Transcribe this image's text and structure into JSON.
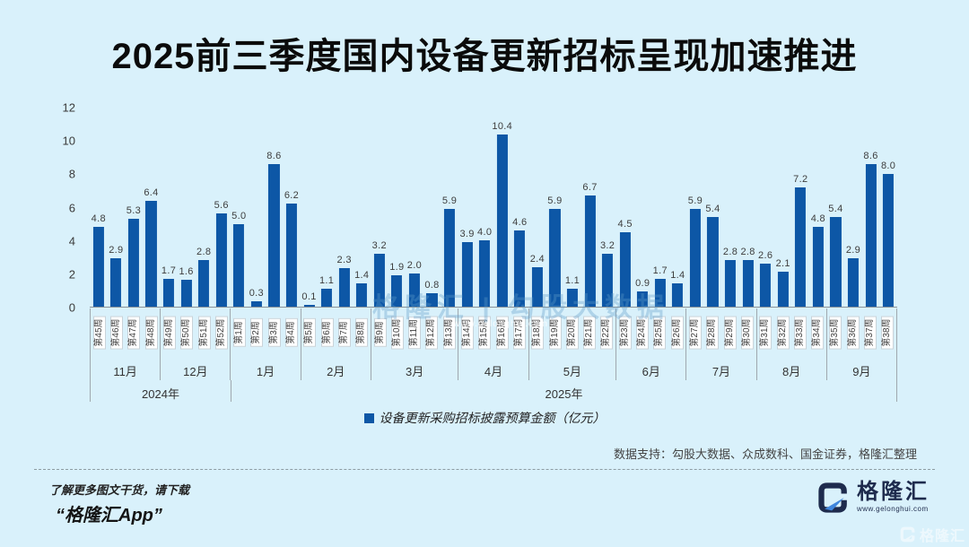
{
  "title": "2025前三季度国内设备更新招标呈现加速推进",
  "chart_data": {
    "type": "bar",
    "title": "2025前三季度国内设备更新招标呈现加速推进",
    "legend": "设备更新采购招标披露预算金额（亿元）",
    "ylabel": "",
    "xlabel": "",
    "ylim": [
      0,
      12
    ],
    "yticks": [
      0,
      2,
      4,
      6,
      8,
      10,
      12
    ],
    "grid": false,
    "legend_position": "bottom",
    "bar_color": "#0d57a6",
    "categories": [
      "第45周",
      "第46周",
      "第47周",
      "第48周",
      "第49周",
      "第50周",
      "第51周",
      "第52周",
      "第1周",
      "第2周",
      "第3周",
      "第4周",
      "第5周",
      "第6周",
      "第7周",
      "第8周",
      "第9周",
      "第10周",
      "第11周",
      "第12周",
      "第13周",
      "第14周",
      "第15周",
      "第16周",
      "第17周",
      "第18周",
      "第19周",
      "第20周",
      "第21周",
      "第22周",
      "第23周",
      "第24周",
      "第25周",
      "第26周",
      "第27周",
      "第28周",
      "第29周",
      "第30周",
      "第31周",
      "第32周",
      "第33周",
      "第34周",
      "第35周",
      "第36周",
      "第37周",
      "第38周"
    ],
    "values": [
      4.8,
      2.9,
      5.3,
      6.4,
      1.7,
      1.6,
      2.8,
      5.6,
      5.0,
      0.3,
      8.6,
      6.2,
      0.1,
      1.1,
      2.3,
      1.4,
      3.2,
      1.9,
      2.0,
      0.8,
      5.9,
      3.9,
      4.0,
      10.4,
      4.6,
      2.4,
      5.9,
      1.1,
      6.7,
      3.2,
      4.5,
      0.9,
      1.7,
      1.4,
      5.9,
      5.4,
      2.8,
      2.8,
      2.6,
      2.1,
      7.2,
      4.8,
      5.4,
      2.9,
      8.6,
      8.0
    ],
    "month_groups": [
      {
        "label": "11月",
        "span": 4
      },
      {
        "label": "12月",
        "span": 4
      },
      {
        "label": "1月",
        "span": 4
      },
      {
        "label": "2月",
        "span": 4
      },
      {
        "label": "3月",
        "span": 5
      },
      {
        "label": "4月",
        "span": 4
      },
      {
        "label": "5月",
        "span": 5
      },
      {
        "label": "6月",
        "span": 4
      },
      {
        "label": "7月",
        "span": 4
      },
      {
        "label": "8月",
        "span": 4
      },
      {
        "label": "9月",
        "span": 4
      }
    ],
    "year_groups": [
      {
        "label": "2024年",
        "span": 8
      },
      {
        "label": "2025年",
        "span": 38
      }
    ]
  },
  "source_note": "数据支持：勾股大数据、众成数科、国金证券，格隆汇整理",
  "footer": {
    "line1": "了解更多图文干货，请下载",
    "line2": "“格隆汇App”"
  },
  "logo": {
    "name": "格隆汇",
    "url": "www.gelonghui.com"
  },
  "watermarks": {
    "center": "格隆汇 | 勾股大数据",
    "center_url": "www.gelonghui.com",
    "corner": "格隆汇"
  },
  "colors": {
    "background": "#d9f1fb",
    "bar": "#0d57a6",
    "logo_navy": "#1e2b4d",
    "logo_blue": "#3f86dd"
  }
}
